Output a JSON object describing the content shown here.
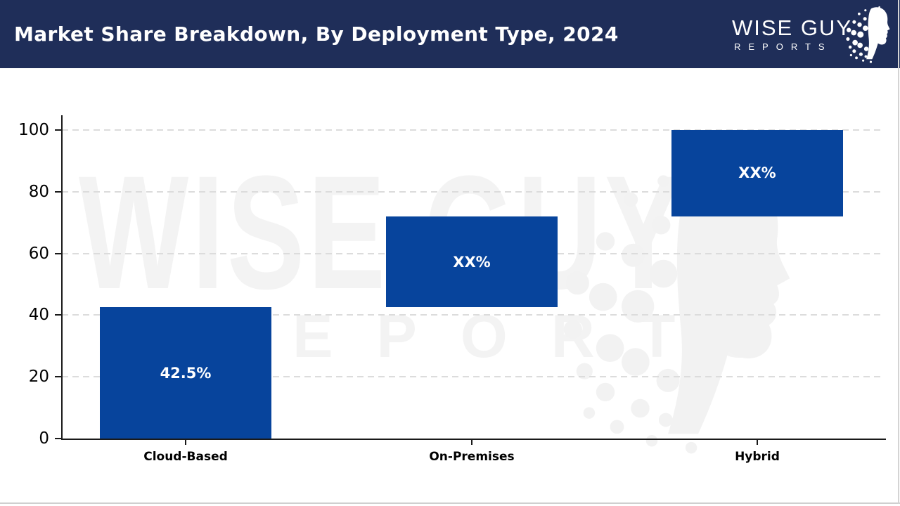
{
  "header": {
    "title": "Market Share Breakdown, By Deployment Type, 2024",
    "bg_color": "#1f2e59",
    "logo": {
      "wordmark": "WISE GUY",
      "subtitle": "REPORTS"
    }
  },
  "watermark": {
    "wordmark": "WISE GUY",
    "subtitle": "REPORTS"
  },
  "chart_data": {
    "type": "bar",
    "subtype": "stepped-waterfall",
    "title": "Market Share Breakdown, By Deployment Type, 2024",
    "categories": [
      "Cloud-Based",
      "On-Premises",
      "Hybrid"
    ],
    "segments": [
      {
        "category": "Cloud-Based",
        "start": 0,
        "end": 42.5,
        "label": "42.5%"
      },
      {
        "category": "On-Premises",
        "start": 42.5,
        "end": 72,
        "label": "XX%"
      },
      {
        "category": "Hybrid",
        "start": 72,
        "end": 100,
        "label": "XX%"
      }
    ],
    "values_pct": [
      42.5,
      29.5,
      28
    ],
    "cumulative_pct": [
      42.5,
      72,
      100
    ],
    "yticks": [
      0,
      20,
      40,
      60,
      80,
      100
    ],
    "ylim": [
      0,
      105
    ],
    "xlabel": "",
    "ylabel": "",
    "grid": "dashed-horizontal",
    "legend": "none",
    "bar_color": "#07449c",
    "bar_label_color": "#ffffff",
    "axis_color": "#1a1a1a",
    "gridline_color": "#dcdcdc"
  }
}
